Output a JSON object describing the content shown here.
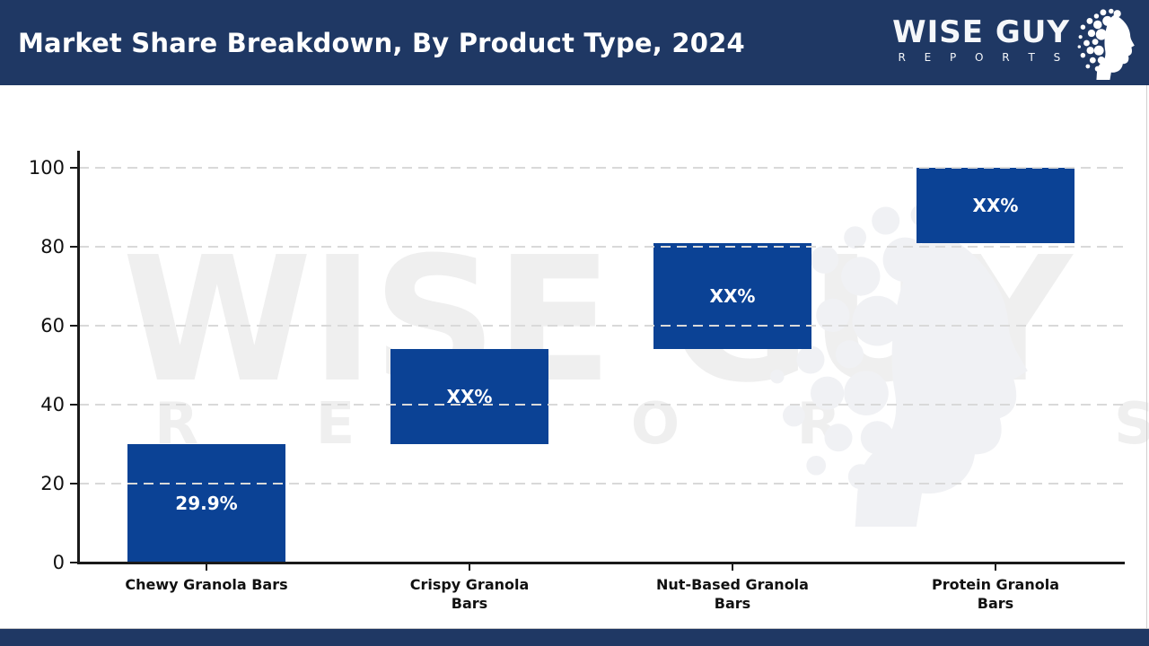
{
  "header": {
    "title": "Market Share Breakdown, By Product Type, 2024",
    "logo": {
      "line1": "WISE GUY",
      "line2": "R E P O R T S"
    }
  },
  "watermark": {
    "line1": "WISE GUY",
    "line2": "R E P O R T S"
  },
  "chart_data": {
    "type": "bar",
    "subtype": "floating-stacked-percent",
    "title": "Market Share Breakdown, By Product Type, 2024",
    "categories": [
      "Chewy Granola Bars",
      "Crispy Granola Bars",
      "Nut-Based Granola Bars",
      "Protein Granola Bars"
    ],
    "category_label_lines": [
      [
        "Chewy Granola Bars"
      ],
      [
        "Crispy Granola",
        "Bars"
      ],
      [
        "Nut-Based Granola",
        "Bars"
      ],
      [
        "Protein Granola",
        "Bars"
      ]
    ],
    "series": [
      {
        "name": "Market Share",
        "segments": [
          {
            "category": "Chewy Granola Bars",
            "start": 0,
            "end": 29.9,
            "label": "29.9%"
          },
          {
            "category": "Crispy Granola Bars",
            "start": 29.9,
            "end": 54.0,
            "label": "XX%"
          },
          {
            "category": "Nut-Based Granola Bars",
            "start": 54.0,
            "end": 81.0,
            "label": "XX%"
          },
          {
            "category": "Protein Granola Bars",
            "start": 81.0,
            "end": 100,
            "label": "XX%"
          }
        ]
      }
    ],
    "ylim": [
      0,
      100
    ],
    "yticks": [
      0,
      20,
      40,
      60,
      80,
      100
    ],
    "xlabel": "",
    "ylabel": "",
    "grid": "dashed-horizontal",
    "legend": "none"
  },
  "colors": {
    "header_bg": "#1f3864",
    "footer_bg": "#1f3864",
    "bar_fill": "#0b4295",
    "bar_label": "#ffffff",
    "gridline": "#d9d9d9",
    "axis": "#1a1a1a",
    "watermark": "#efefef"
  }
}
